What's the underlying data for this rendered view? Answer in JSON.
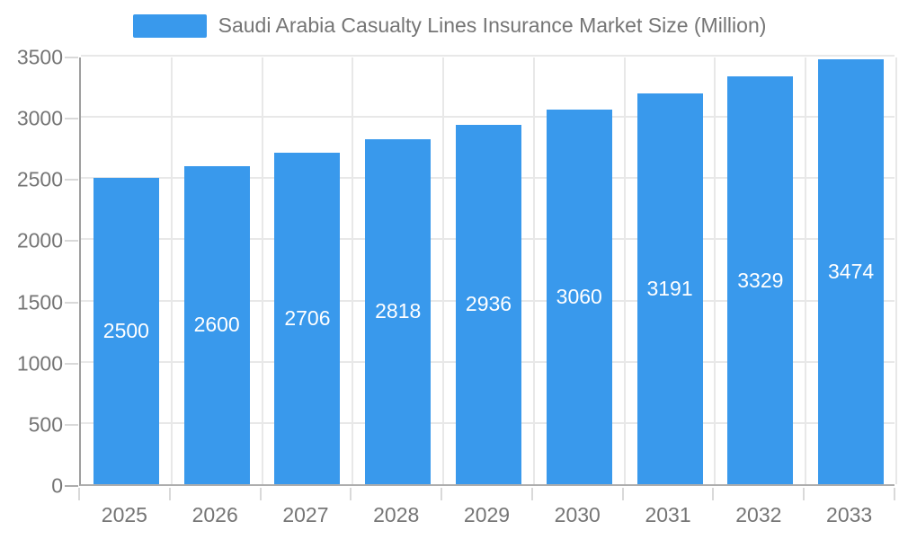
{
  "legend": {
    "label": "Saudi Arabia Casualty Lines Insurance Market Size (Million)",
    "swatch_color": "#3999ec"
  },
  "chart_data": {
    "type": "bar",
    "title": "Saudi Arabia Casualty Lines Insurance Market Size (Million)",
    "categories": [
      "2025",
      "2026",
      "2027",
      "2028",
      "2029",
      "2030",
      "2031",
      "2032",
      "2033"
    ],
    "values": [
      2500,
      2600,
      2706,
      2818,
      2936,
      3060,
      3191,
      3329,
      3474
    ],
    "xlabel": "",
    "ylabel": "",
    "ylim": [
      0,
      3500
    ],
    "ytick_interval": 500,
    "ytick_labels": [
      "0",
      "500",
      "1000",
      "1500",
      "2000",
      "2500",
      "3000",
      "3500"
    ],
    "grid": true,
    "legend_position": "top-center",
    "bar_color": "#3999ec",
    "value_label_color": "#ffffff",
    "axis_text_color": "#757575"
  }
}
